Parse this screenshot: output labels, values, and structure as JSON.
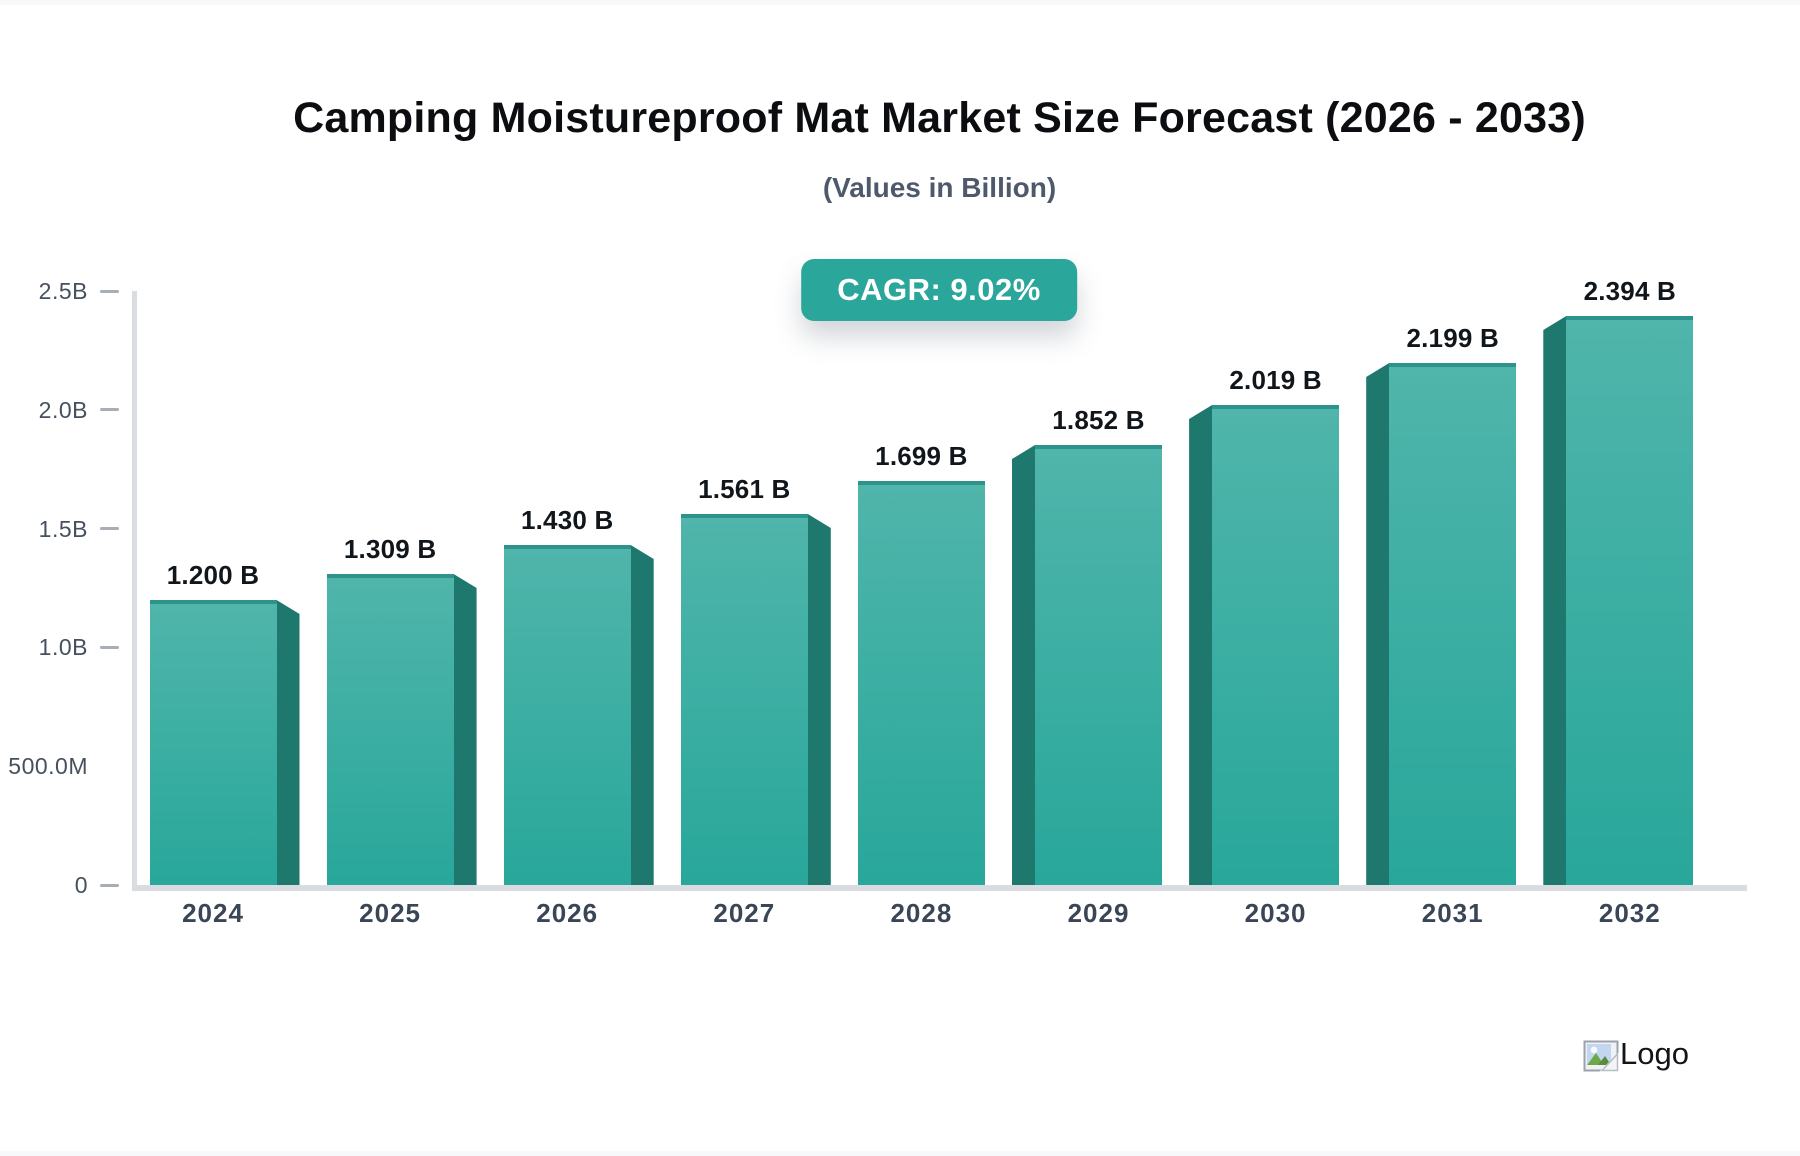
{
  "header": {
    "title": "Camping Moistureproof Mat Market Size Forecast (2026 - 2033)",
    "subtitle": "(Values in Billion)"
  },
  "badge": {
    "label": "CAGR: 9.02%",
    "bg_color": "#2BA69B",
    "text_color": "#FFFFFF"
  },
  "footer": {
    "logo_alt": "Logo"
  },
  "chart_data": {
    "type": "bar",
    "title": "Camping Moistureproof Mat Market Size Forecast (2026 - 2033)",
    "subtitle": "(Values in Billion)",
    "unit": "Billion",
    "categories": [
      "2024",
      "2025",
      "2026",
      "2027",
      "2028",
      "2029",
      "2030",
      "2031",
      "2032"
    ],
    "values": [
      1.2,
      1.309,
      1.43,
      1.561,
      1.699,
      1.852,
      2.019,
      2.199,
      2.394
    ],
    "value_labels": [
      "1.200 B",
      "1.309 B",
      "1.430 B",
      "1.561 B",
      "1.699 B",
      "1.852 B",
      "2.019 B",
      "2.199 B",
      "2.394 B"
    ],
    "cagr_label": "CAGR: 9.02%",
    "xlabel": "",
    "ylabel": "",
    "ylim": [
      0,
      2.5
    ],
    "grid": false,
    "legend": "none",
    "y_ticks": [
      {
        "label": "0",
        "value": 0,
        "dash": true
      },
      {
        "label": "500.0M",
        "value": 0.5,
        "dash": false
      },
      {
        "label": "1.0B",
        "value": 1.0,
        "dash": true
      },
      {
        "label": "1.5B",
        "value": 1.5,
        "dash": true
      },
      {
        "label": "2.0B",
        "value": 2.0,
        "dash": true
      },
      {
        "label": "2.5B",
        "value": 2.5,
        "dash": true
      }
    ],
    "style": "3d bars, side faces angled toward chart center",
    "colors": {
      "bar_face_top": "#50B5AB",
      "bar_face_bottom": "#28A79A",
      "bar_top_edge": "#2E948B",
      "bar_side": "#1F786E",
      "axis": "#D9DCE0",
      "tick_dash": "#A7AEB8",
      "axis_label": "#46505F",
      "category_label": "#3A4656",
      "value_label": "#11161B"
    }
  }
}
